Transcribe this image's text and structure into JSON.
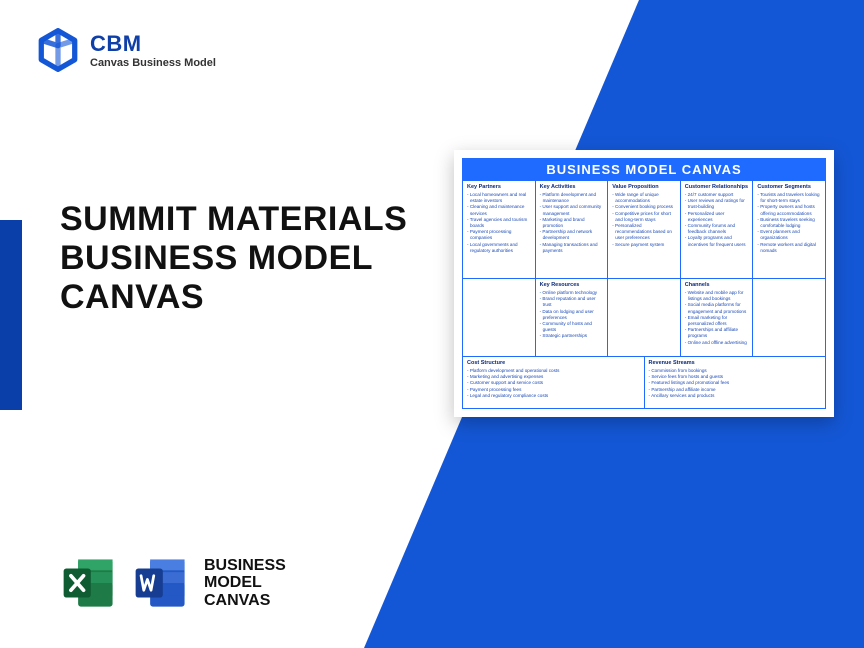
{
  "brand": {
    "short": "CBM",
    "long": "Canvas Business Model"
  },
  "headline": "SUMMIT MATERIALS BUSINESS MODEL CANVAS",
  "footer_label": "BUSINESS\nMODEL\nCANVAS",
  "colors": {
    "primary": "#1457d6",
    "accent": "#0a3ea8",
    "canvas_header": "#1f6bff",
    "excel": "#1e7a46",
    "word": "#2358c5"
  },
  "canvas": {
    "title": "BUSINESS MODEL CANVAS",
    "blocks": {
      "key_partners": {
        "title": "Key Partners",
        "items": [
          "Local homeowners and real estate investors",
          "Cleaning and maintenance services",
          "Travel agencies and tourism boards",
          "Payment processing companies",
          "Local governments and regulatory authorities"
        ]
      },
      "key_activities": {
        "title": "Key Activities",
        "items": [
          "Platform development and maintenance",
          "User support and community management",
          "Marketing and brand promotion",
          "Partnership and network development",
          "Managing transactions and payments"
        ]
      },
      "value_proposition": {
        "title": "Value Proposition",
        "items": [
          "Wide range of unique accommodations",
          "Convenient booking process",
          "Competitive prices for short and long-term stays",
          "Personalized recommendations based on user preferences",
          "Secure payment system"
        ]
      },
      "customer_relationships": {
        "title": "Customer Relationships",
        "items": [
          "24/7 customer support",
          "User reviews and ratings for trust-building",
          "Personalized user experiences",
          "Community forums and feedback channels",
          "Loyalty programs and incentives for frequent users"
        ]
      },
      "customer_segments": {
        "title": "Customer Segments",
        "items": [
          "Tourists and travelers looking for short-term stays",
          "Property owners and hosts offering accommodations",
          "Business travelers seeking comfortable lodging",
          "Event planners and organizations",
          "Remote workers and digital nomads"
        ]
      },
      "key_resources": {
        "title": "Key Resources",
        "items": [
          "Online platform technology",
          "Brand reputation and user trust",
          "Data on lodging and user preferences",
          "Community of hosts and guests",
          "Strategic partnerships"
        ]
      },
      "channels": {
        "title": "Channels",
        "items": [
          "Website and mobile app for listings and bookings",
          "Social media platforms for engagement and promotions",
          "Email marketing for personalized offers",
          "Partnerships and affiliate programs",
          "Online and offline advertising"
        ]
      },
      "cost_structure": {
        "title": "Cost Structure",
        "items": [
          "Platform development and operational costs",
          "Marketing and advertising expenses",
          "Customer support and service costs",
          "Payment processing fees",
          "Legal and regulatory compliance costs"
        ]
      },
      "revenue_streams": {
        "title": "Revenue Streams",
        "items": [
          "Commission from bookings",
          "Service fees from hosts and guests",
          "Featured listings and promotional fees",
          "Partnership and affiliate income",
          "Ancillary services and products"
        ]
      }
    }
  }
}
